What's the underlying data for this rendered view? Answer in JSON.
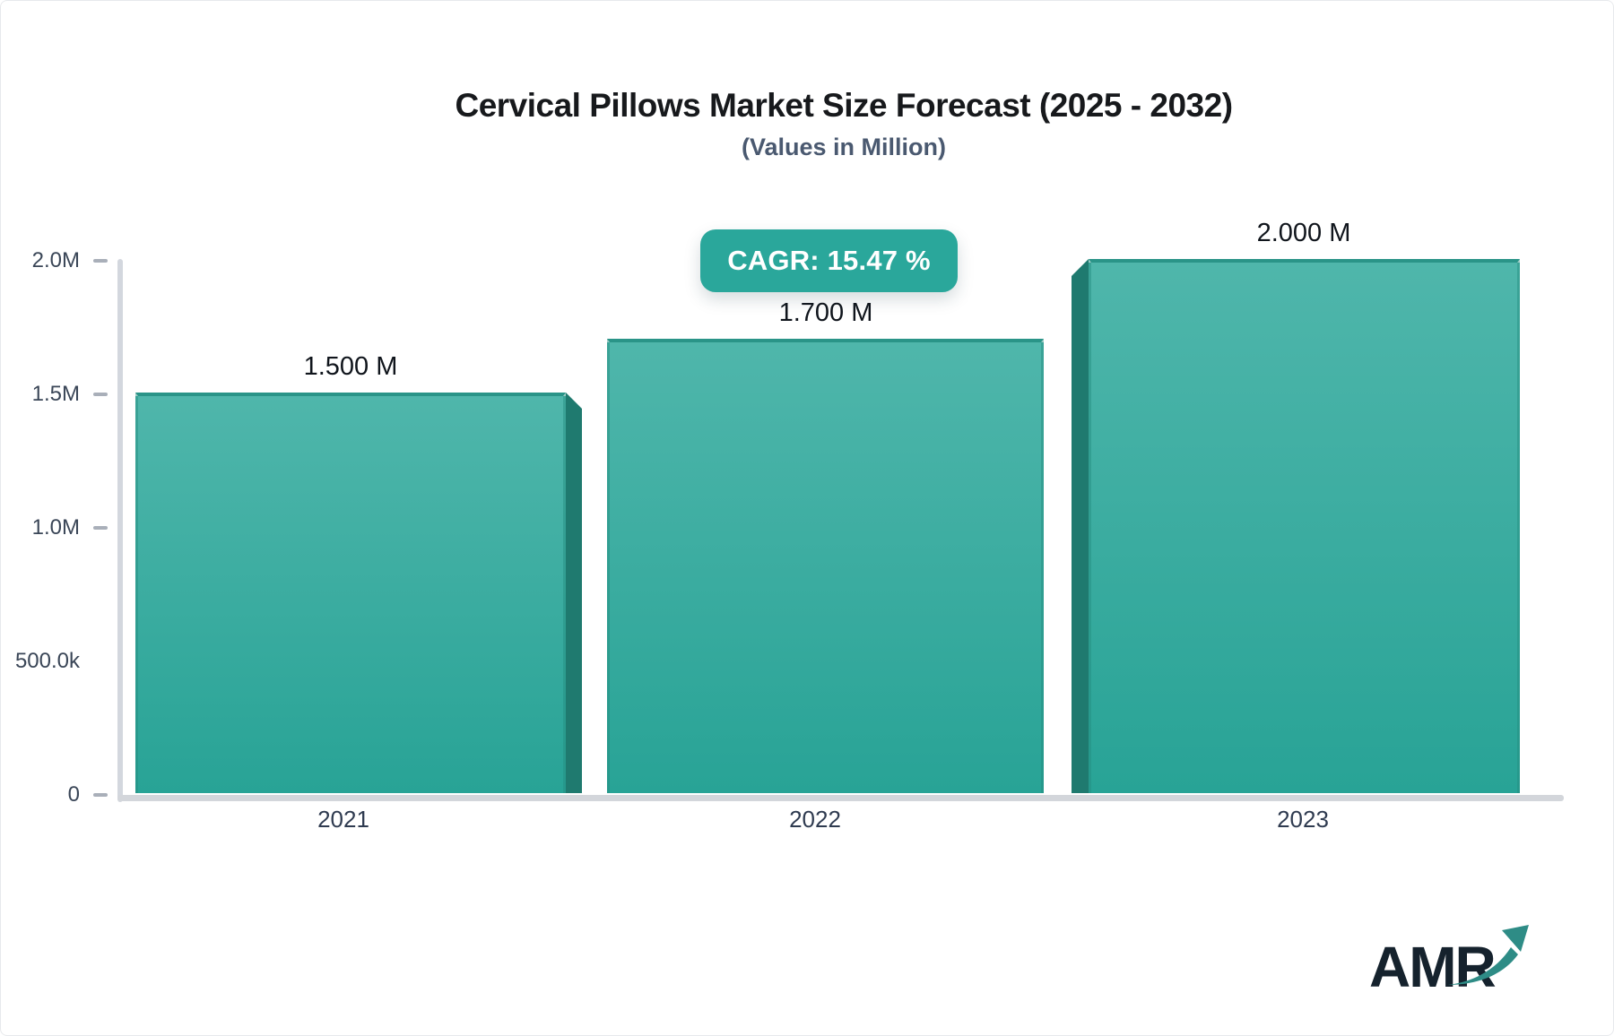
{
  "title": "Cervical Pillows Market Size Forecast (2025 - 2032)",
  "subtitle": "(Values in Million)",
  "cagr_badge": "CAGR: 15.47 %",
  "logo_text": "AMR",
  "colors": {
    "bar_top": "#4FB6AB",
    "bar_bottom": "#28A396",
    "bar_border": "#2A9488",
    "bar_side": "#1F7A6F",
    "badge": "#2AA79B",
    "axis_line": "#D3D6DB",
    "tick_text": "#3A4657",
    "title_text": "#17191C",
    "subtitle_text": "#4A5970"
  },
  "chart_data": {
    "type": "bar",
    "title": "Cervical Pillows Market Size Forecast (2025 - 2032)",
    "subtitle": "(Values in Million)",
    "categories": [
      "2021",
      "2022",
      "2023"
    ],
    "values": [
      1500000,
      1700000,
      2000000
    ],
    "value_labels": [
      "1.500 M",
      "1.700 M",
      "2.000 M"
    ],
    "annotation": "CAGR: 15.47 %",
    "xlabel": "",
    "ylabel": "",
    "ylim": [
      0,
      2000000
    ],
    "yticks": [
      {
        "label": "2.0M",
        "value": 2000000,
        "dash": true
      },
      {
        "label": "1.5M",
        "value": 1500000,
        "dash": true
      },
      {
        "label": "1.0M",
        "value": 1000000,
        "dash": true
      },
      {
        "label": "500.0k",
        "value": 500000,
        "dash": false
      },
      {
        "label": "0",
        "value": 0,
        "dash": true
      }
    ],
    "grid": false,
    "legend": false
  }
}
